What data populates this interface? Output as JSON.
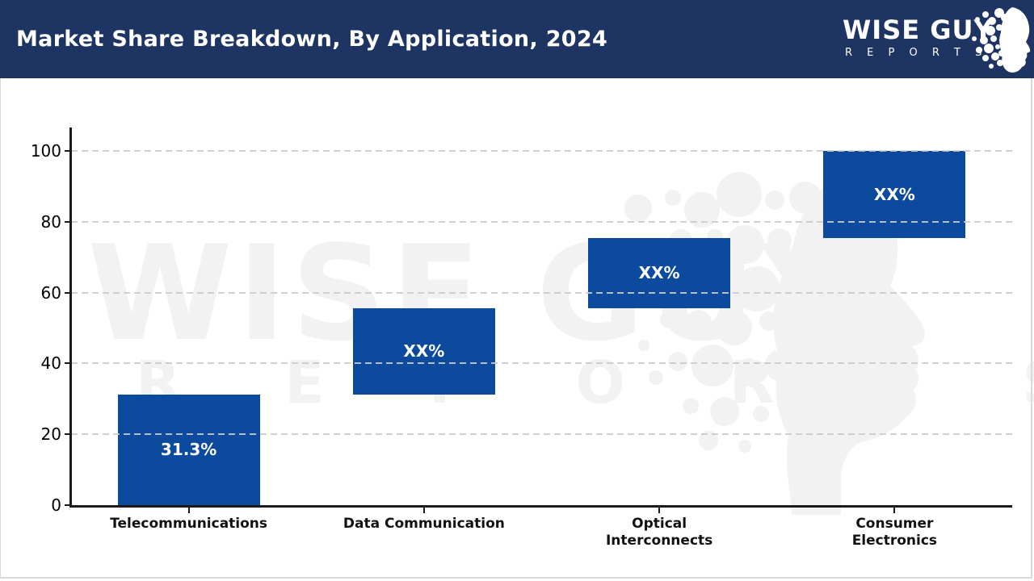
{
  "header": {
    "title": "Market Share Breakdown, By Application, 2024",
    "logo": {
      "line1": "WISE GUY",
      "line2": "R E P O R T S"
    }
  },
  "watermark": {
    "line1": "WISE GUY",
    "line2": "R E P O R T S"
  },
  "chart_data": {
    "type": "bar",
    "subtype": "waterfall",
    "title": "Market Share Breakdown, By Application, 2024",
    "unit": "%",
    "categories": [
      "Telecommunications",
      "Data Communication",
      "Optical Interconnects",
      "Consumer Electronics"
    ],
    "category_lines": [
      [
        "Telecommunications"
      ],
      [
        "Data Communication"
      ],
      [
        "Optical",
        "Interconnects"
      ],
      [
        "Consumer",
        "Electronics"
      ]
    ],
    "segments": [
      {
        "category": "Telecommunications",
        "start": 0,
        "end": 31.3,
        "label": "31.3%"
      },
      {
        "category": "Data Communication",
        "start": 31.3,
        "end": 55.5,
        "label": "XX%"
      },
      {
        "category": "Optical Interconnects",
        "start": 55.5,
        "end": 75.5,
        "label": "XX%"
      },
      {
        "category": "Consumer Electronics",
        "start": 75.5,
        "end": 100,
        "label": "XX%"
      }
    ],
    "yticks": [
      0,
      20,
      40,
      60,
      80,
      100
    ],
    "ylim": [
      0,
      100
    ],
    "xlabel": "",
    "ylabel": "",
    "grid": "dashed-horizontal",
    "legend": "none",
    "colors": {
      "bar": "#0c4a9e",
      "header_bg": "#1e3462",
      "grid": "#d3d3d3",
      "axis": "#1a1a1a",
      "bar_label_text": "#ffffff",
      "watermark": "#f2f2f2",
      "border": "#d9d9d9"
    }
  }
}
